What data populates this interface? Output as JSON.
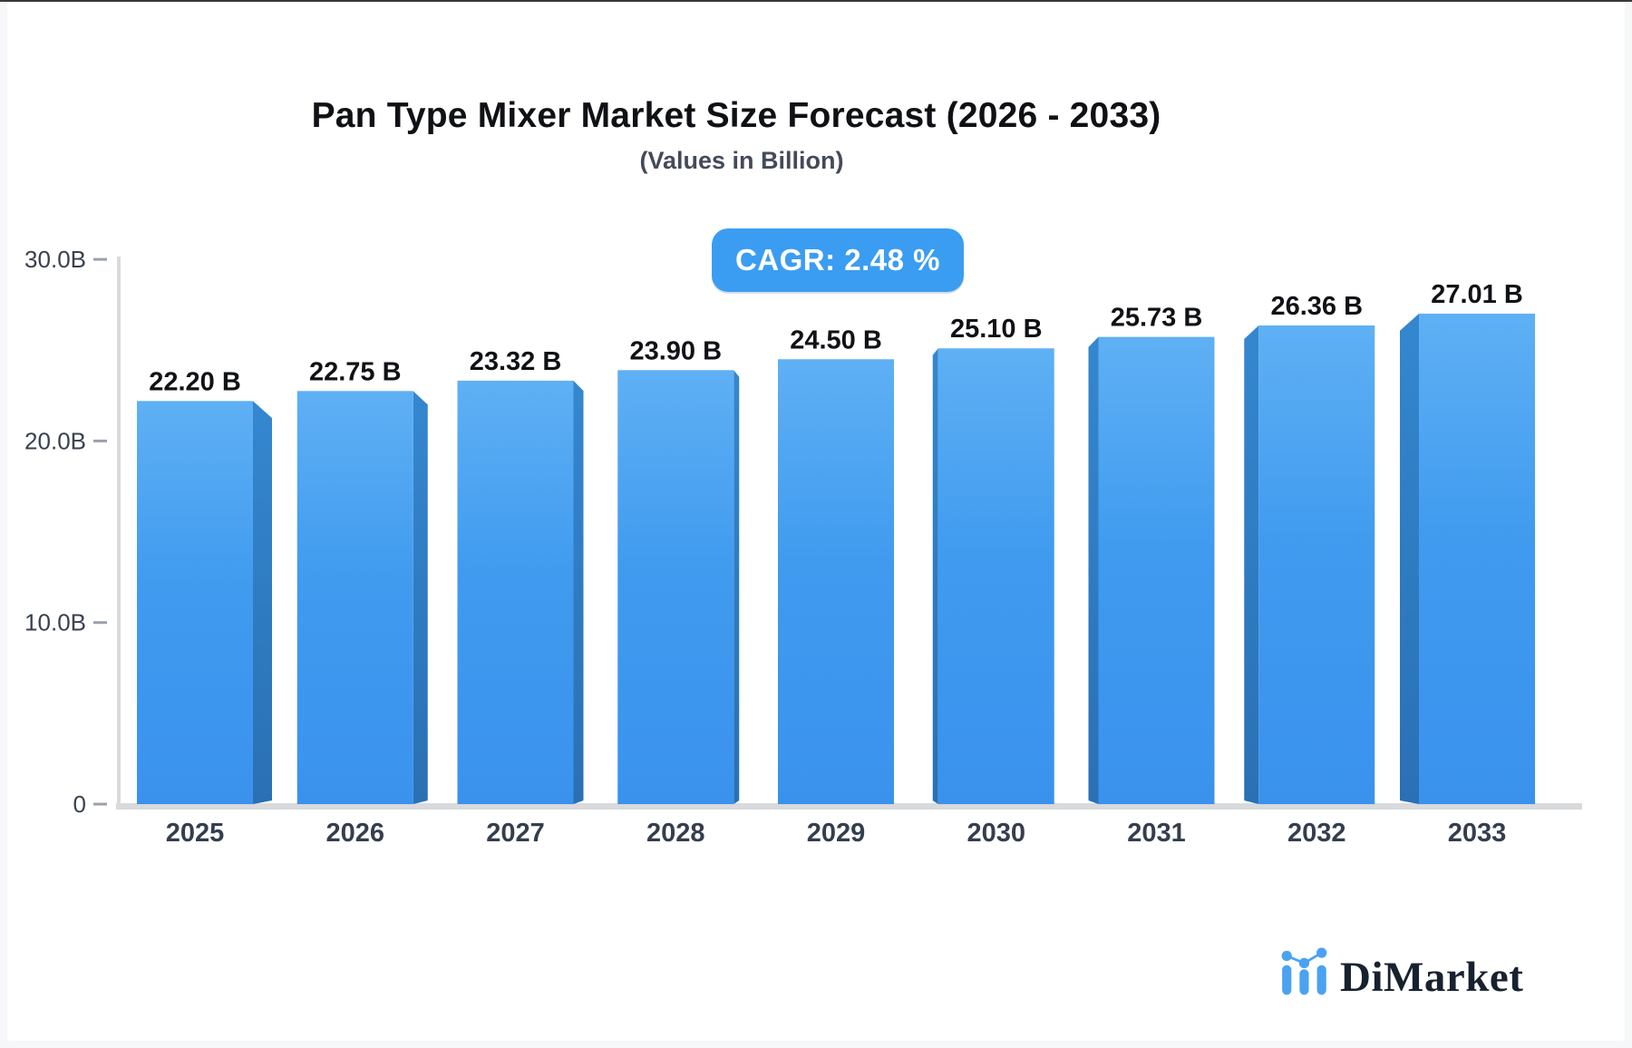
{
  "header": {
    "title": "Pan Type Mixer Market Size Forecast (2026 - 2033)",
    "subtitle": "(Values in Billion)"
  },
  "cagr_badge": {
    "label": "CAGR: 2.48 %",
    "background": "#3b9df1",
    "text_color": "#ffffff"
  },
  "chart_data": {
    "type": "bar",
    "title": "Pan Type Mixer Market Size Forecast (2026 - 2033)",
    "subtitle": "(Values in Billion)",
    "unit": "Billion",
    "cagr_percent": 2.48,
    "categories": [
      "2025",
      "2026",
      "2027",
      "2028",
      "2029",
      "2030",
      "2031",
      "2032",
      "2033"
    ],
    "values": [
      22.2,
      22.75,
      23.32,
      23.9,
      24.5,
      25.1,
      25.73,
      26.36,
      27.01
    ],
    "value_labels": [
      "22.20 B",
      "22.75 B",
      "23.32 B",
      "23.90 B",
      "24.50 B",
      "25.10 B",
      "25.73 B",
      "26.36 B",
      "27.01 B"
    ],
    "xlabel": "",
    "ylabel": "",
    "ylim": [
      0,
      30
    ],
    "yticks": [
      {
        "v": 0,
        "label": "0"
      },
      {
        "v": 10,
        "label": "10.0B"
      },
      {
        "v": 20,
        "label": "20.0B"
      },
      {
        "v": 30,
        "label": "30.0B"
      }
    ],
    "grid": false,
    "legend": false,
    "colors": {
      "bar_face_top": "#5fb0f4",
      "bar_face_mid": "#409bef",
      "bar_face_bottom": "#3a92ed",
      "bar_side_top": "#3487cf",
      "bar_side_bottom": "#2a70b4",
      "axis_line": "#d8dadc",
      "tick_dash": "#9ba1ab",
      "axis_label": "#39414f",
      "x_label": "#343e4d",
      "value_label": "#101216"
    }
  },
  "footer": {
    "brand": "DiMarket",
    "icon": "bar-line-chart-icon",
    "icon_color": "#4aa2f1",
    "brand_color": "#18222f"
  }
}
